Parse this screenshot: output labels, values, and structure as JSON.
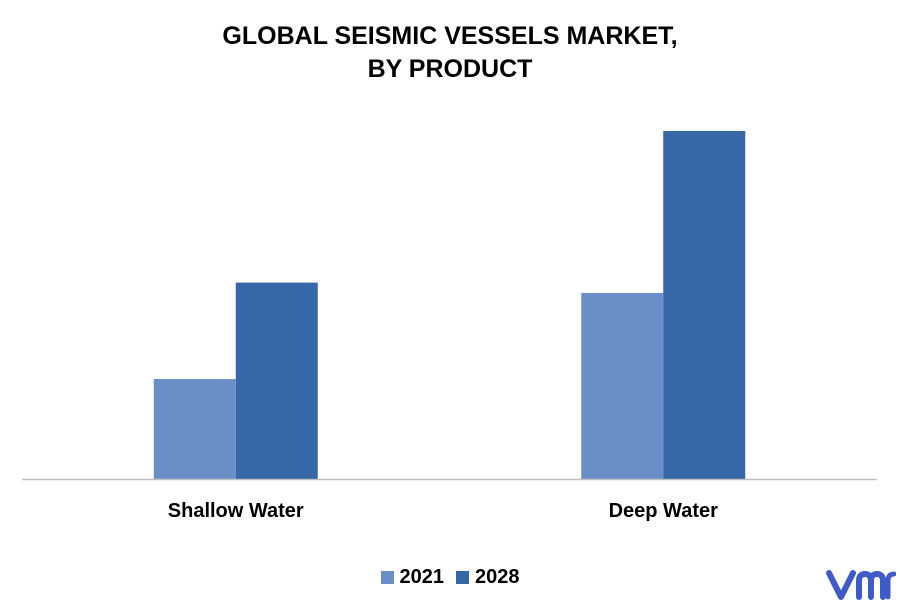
{
  "chart_data": {
    "type": "bar",
    "title_lines": [
      "GLOBAL SEISMIC VESSELS MARKET,",
      "BY PRODUCT"
    ],
    "categories": [
      "Shallow Water",
      "Deep Water"
    ],
    "series": [
      {
        "name": "2021",
        "values": [
          29,
          54
        ],
        "color": "#6A8FC7"
      },
      {
        "name": "2028",
        "values": [
          57,
          101
        ],
        "color": "#3767A6"
      }
    ],
    "ylim": [
      0,
      110
    ],
    "grid": false,
    "legend_position": "bottom"
  },
  "brand": {
    "name": "vmr",
    "color": "#3F5BC9"
  }
}
